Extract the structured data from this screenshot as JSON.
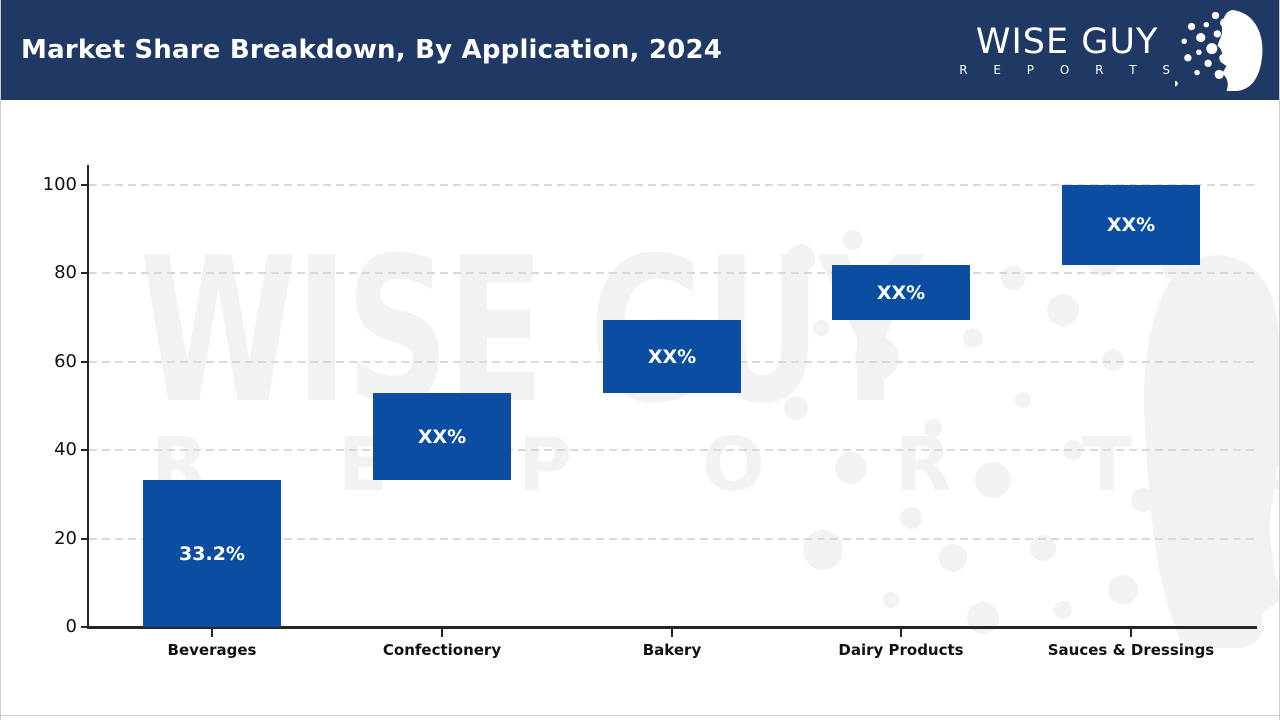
{
  "header": {
    "title": "Market Share Breakdown, By Application, 2024",
    "logo": {
      "line1": "WISE GUY",
      "line2": "R E P O R T S"
    }
  },
  "watermark": {
    "line1": "WISE GUY",
    "line2": "R E P O R T S"
  },
  "chart_data": {
    "type": "bar",
    "variant": "waterfall",
    "title": "Market Share Breakdown, By Application, 2024",
    "categories": [
      "Beverages",
      "Confectionery",
      "Bakery",
      "Dairy Products",
      "Sauces & Dressings"
    ],
    "segments": [
      {
        "category": "Beverages",
        "start": 0,
        "end": 33.2,
        "value": 33.2,
        "label": "33.2%"
      },
      {
        "category": "Confectionery",
        "start": 33.2,
        "end": 52.9,
        "value": 19.7,
        "label": "XX%"
      },
      {
        "category": "Bakery",
        "start": 52.9,
        "end": 69.5,
        "value": 16.6,
        "label": "XX%"
      },
      {
        "category": "Dairy Products",
        "start": 69.5,
        "end": 81.9,
        "value": 12.4,
        "label": "XX%"
      },
      {
        "category": "Sauces & Dressings",
        "start": 81.9,
        "end": 100,
        "value": 18.1,
        "label": "XX%"
      }
    ],
    "xlabel": "",
    "ylabel": "",
    "ylim": [
      0,
      100
    ],
    "yticks": [
      0,
      20,
      40,
      60,
      80,
      100
    ],
    "grid": "horizontal-dashed",
    "legend": "none",
    "colors": {
      "bar": "#0a4da1",
      "bar_label": "#ffffff",
      "axis": "#262626",
      "gridline": "#d9d9d9",
      "header_bg": "#203864",
      "header_text": "#ffffff",
      "watermark": "#f2f2f4"
    }
  }
}
